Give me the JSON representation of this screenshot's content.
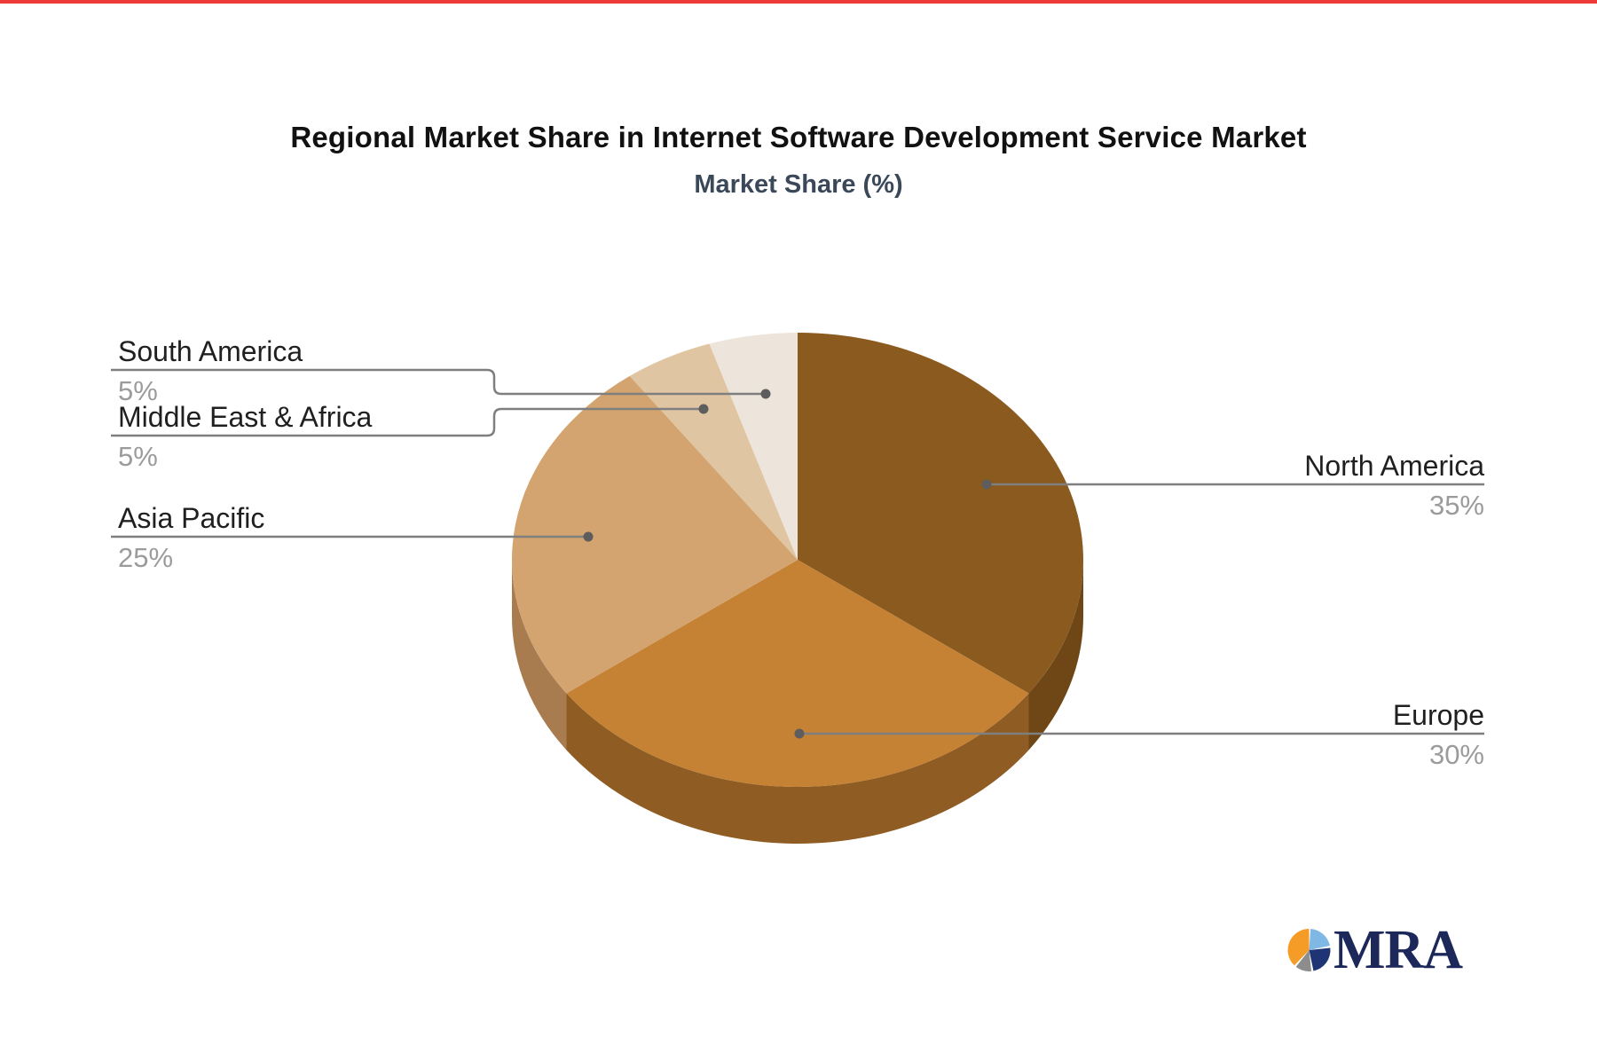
{
  "page": {
    "top_strip_color": "#ee3a38",
    "background_color": "#ffffff"
  },
  "title": "Regional Market Share in Internet Software Development Service Market",
  "subtitle": "Market Share (%)",
  "chart_data": {
    "type": "pie",
    "style": "3d",
    "title": "Regional Market Share in Internet Software Development Service Market",
    "subtitle": "Market Share (%)",
    "unit": "%",
    "direction": "clockwise",
    "start_angle_deg": 0,
    "legend": "none",
    "series": [
      {
        "name": "North America",
        "value": 35,
        "label": "35%",
        "color": "#8B5A1E",
        "side_color": "#6F4717"
      },
      {
        "name": "Europe",
        "value": 30,
        "label": "30%",
        "color": "#C58234",
        "side_color": "#8F5D24"
      },
      {
        "name": "Asia Pacific",
        "value": 25,
        "label": "25%",
        "color": "#D3A46F",
        "side_color": "#A97C50"
      },
      {
        "name": "Middle East & Africa",
        "value": 5,
        "label": "5%",
        "color": "#DFC5A2",
        "side_color": "#B79877"
      },
      {
        "name": "South America",
        "value": 5,
        "label": "5%",
        "color": "#EDE4DB",
        "side_color": "#C9BBAE"
      }
    ],
    "label_style": {
      "name_color": "#202020",
      "percent_color": "#9b9b9b",
      "connector_color": "#7f7f7f",
      "connector_dot_color": "#5d5d5d"
    }
  },
  "logo": {
    "text": "MRA",
    "text_color": "#1b2859",
    "icon_colors": {
      "orange": "#F59C27",
      "light_blue": "#7FB7E5",
      "navy": "#1E3474",
      "gray": "#8D8D8D"
    }
  }
}
